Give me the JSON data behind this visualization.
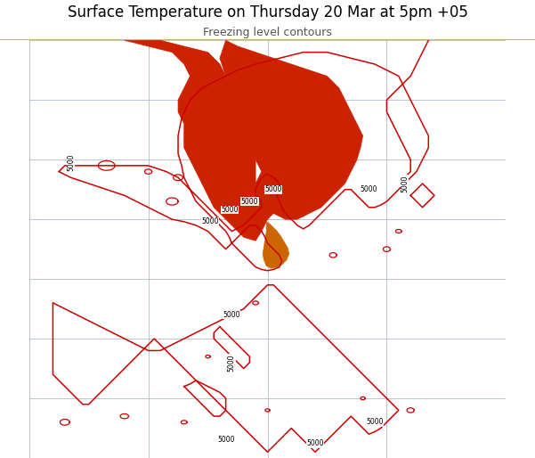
{
  "title": "Surface Temperature on Thursday 20 Mar at 5pm +05",
  "subtitle": "Freezing level contours",
  "title_fontsize": 12,
  "subtitle_fontsize": 9,
  "fig_width": 6.01,
  "fig_height": 5.14,
  "dpi": 100,
  "ocean_color": "#c8d4e8",
  "header_bg": "#ffffff",
  "contour_color": "#cc0000",
  "grid_color": "#b0bccc",
  "land_red": "#cc2200",
  "land_orange": "#cc6600",
  "map_extent": [
    60,
    100,
    -10,
    25
  ],
  "grid_lons": [
    60,
    70,
    80,
    90,
    100
  ],
  "grid_lats": [
    -10,
    -5,
    0,
    5,
    10,
    15,
    20,
    25
  ]
}
